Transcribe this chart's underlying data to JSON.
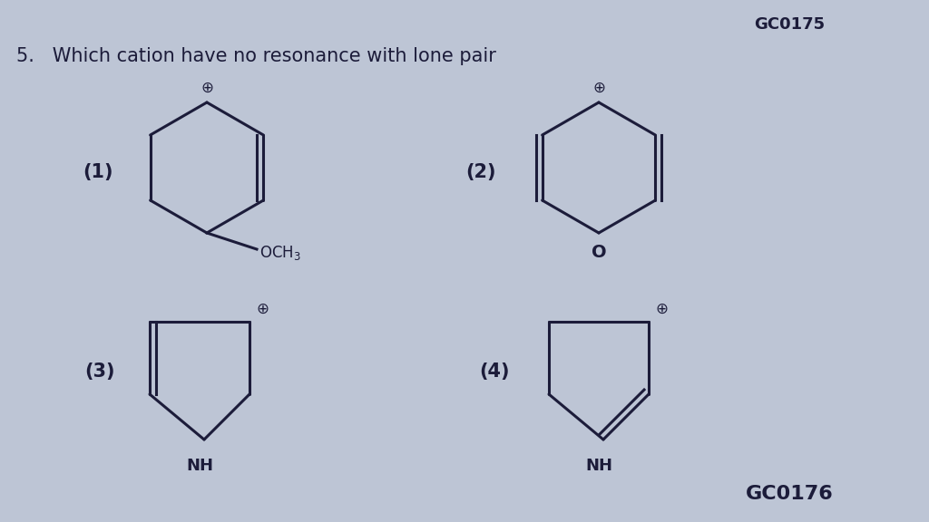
{
  "background_color": "#bdc5d5",
  "title_text": "5.   Which cation have no resonance with lone pair",
  "header_text": "GC0175",
  "footer_text": "GC0176",
  "title_fontsize": 15,
  "label_fontsize": 15,
  "structure_color": "#1c1c3a",
  "text_color": "#1c1c3a",
  "lw": 2.2
}
